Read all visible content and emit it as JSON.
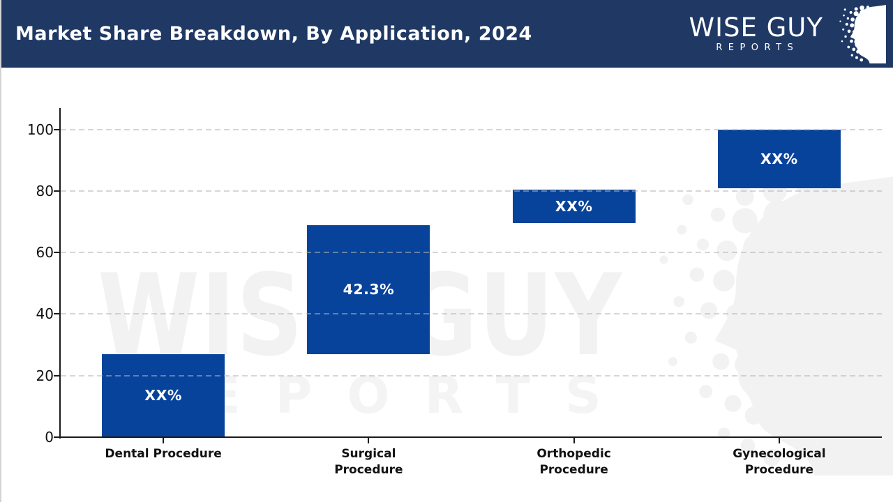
{
  "header": {
    "title": "Market Share Breakdown, By Application, 2024",
    "logo": {
      "primary": "WISE GUY",
      "secondary": "REPORTS"
    }
  },
  "watermark": {
    "line1": "WISE GUY",
    "line2": "REPORTS"
  },
  "colors": {
    "header_bg": "#1f3864",
    "bar_fill": "#08439b",
    "axis": "#1a1a1a",
    "grid": "#d9d9d9",
    "bar_label_text": "#ffffff",
    "tick_text": "#111111",
    "watermark": "#f2f2f2"
  },
  "chart_data": {
    "type": "bar",
    "subtype": "floating-segment-waterfall",
    "title": "Market Share Breakdown, By Application, 2024",
    "categories": [
      "Dental Procedure",
      "Surgical Procedure",
      "Orthopedic Procedure",
      "Gynecological Procedure"
    ],
    "segments": [
      {
        "category": "Dental Procedure",
        "start": 0,
        "end": 27,
        "label": "XX%"
      },
      {
        "category": "Surgical Procedure",
        "start": 27,
        "end": 69,
        "label": "42.3%"
      },
      {
        "category": "Orthopedic Procedure",
        "start": 69.5,
        "end": 80.5,
        "label": "XX%"
      },
      {
        "category": "Gynecological Procedure",
        "start": 81,
        "end": 100,
        "label": "XX%"
      }
    ],
    "xlabel": "",
    "ylabel": "",
    "ylim": [
      0,
      100
    ],
    "yticks": [
      0,
      20,
      40,
      60,
      80,
      100
    ],
    "grid": "horizontal-dashed-over-bars",
    "legend": "none"
  }
}
